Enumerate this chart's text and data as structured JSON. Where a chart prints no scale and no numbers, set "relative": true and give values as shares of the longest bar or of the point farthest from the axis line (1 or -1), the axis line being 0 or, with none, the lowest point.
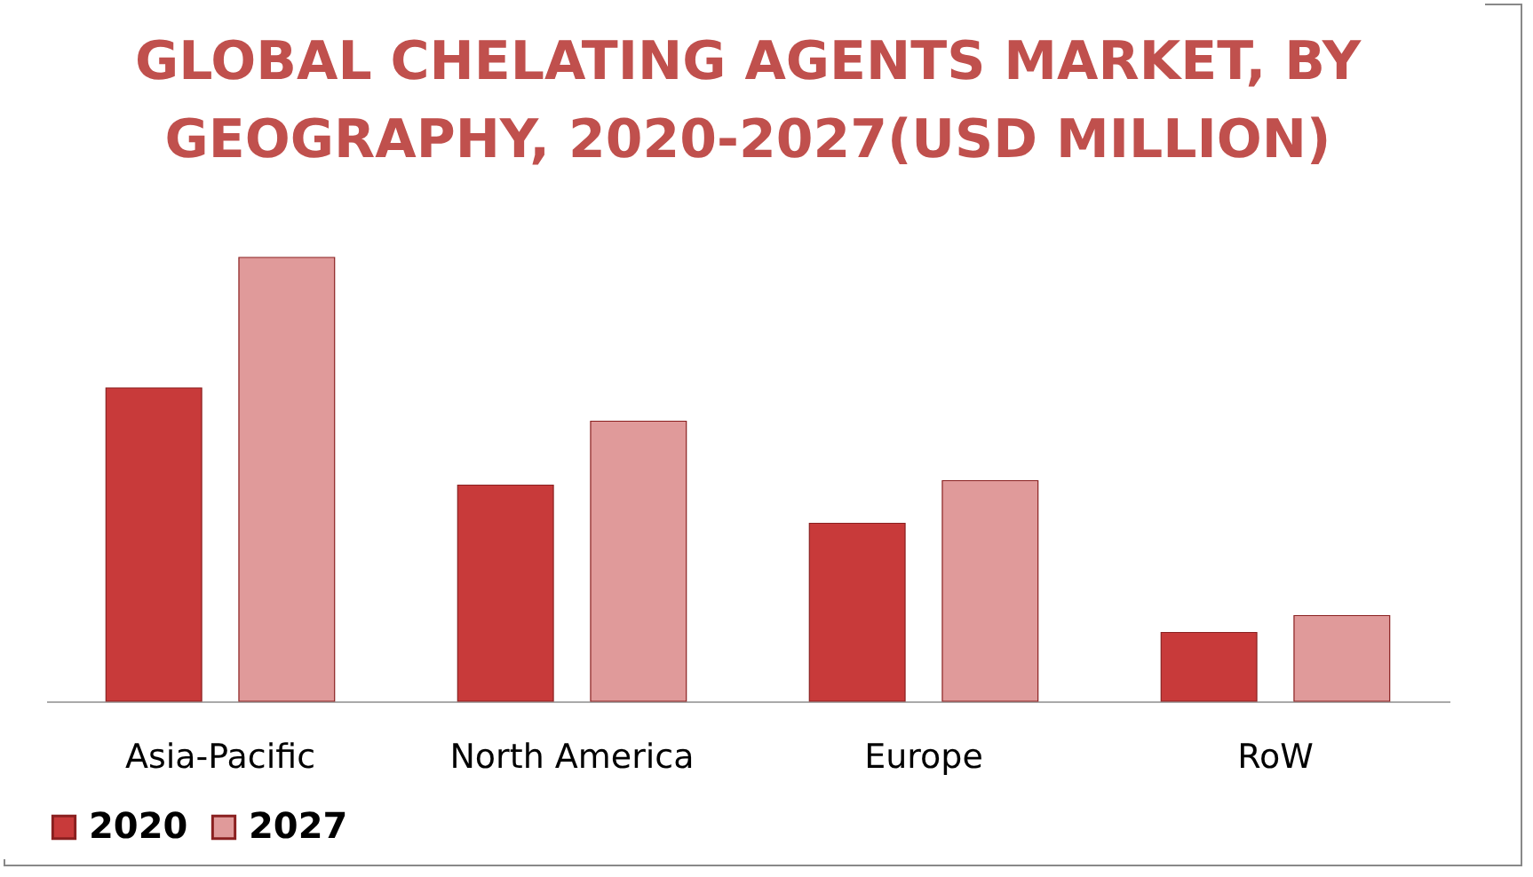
{
  "chart_data": {
    "type": "bar",
    "title": "GLOBAL CHELATING AGENTS MARKET, BY GEOGRAPHY, 2020-2027(USD MILLION)",
    "categories": [
      "Asia-Pacific",
      "North America",
      "Europe",
      "RoW"
    ],
    "relative": true,
    "legend": "bottom",
    "series": [
      {
        "name": "2020",
        "color": "#c83a3a",
        "values": [
          0.706,
          0.487,
          0.401,
          0.155
        ]
      },
      {
        "name": "2027",
        "color": "#e09a9a",
        "values": [
          1,
          0.631,
          0.497,
          0.193
        ]
      }
    ]
  }
}
